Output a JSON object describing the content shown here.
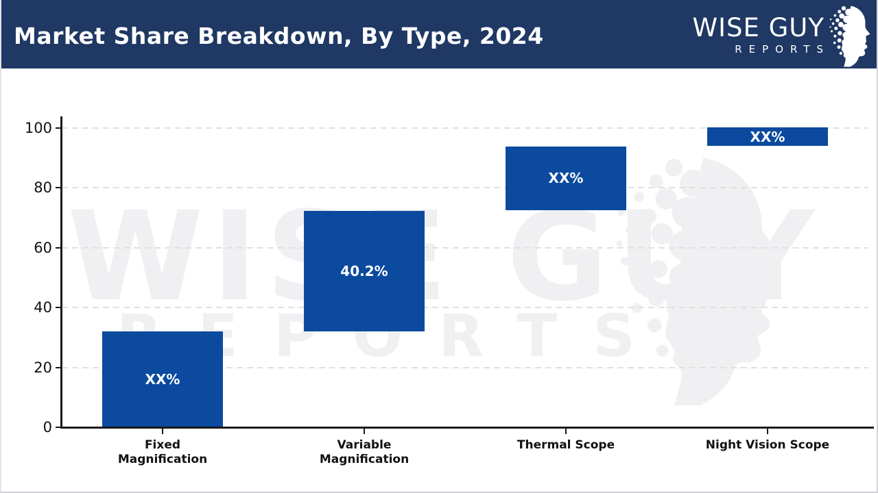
{
  "header": {
    "title": "Market Share Breakdown, By Type, 2024",
    "brand": {
      "name": "WISE GUY",
      "sub": "REPORTS"
    }
  },
  "watermark": {
    "name": "WISE GUY",
    "sub": "REPORTS"
  },
  "colors": {
    "header_bg": "#1f3864",
    "bar_fill": "#0b4a9f",
    "bar_label": "#ffffff",
    "grid_line": "#e0e0e0",
    "axis_line": "#1a1a1a",
    "tick_label": "#111111",
    "watermark_fill": "#f0f0f3"
  },
  "chart_data": {
    "type": "bar",
    "variant": "stacked_waterfall_percent",
    "title": "Market Share Breakdown, By Type, 2024",
    "xlabel": "",
    "ylabel": "",
    "ylim": [
      0,
      100
    ],
    "y_ticks": [
      0,
      20,
      40,
      60,
      80,
      100
    ],
    "grid": "horizontal-dashed",
    "legend": "none",
    "categories": [
      {
        "label": "Fixed Magnification",
        "label_lines": [
          "Fixed",
          "Magnification"
        ],
        "start": 0,
        "end": 32,
        "value_label": "XX%"
      },
      {
        "label": "Variable Magnification",
        "label_lines": [
          "Variable",
          "Magnification"
        ],
        "start": 32.1,
        "end": 72.3,
        "value_label": "40.2%",
        "value": 40.2
      },
      {
        "label": "Thermal Scope",
        "label_lines": [
          "Thermal Scope"
        ],
        "start": 72.5,
        "end": 93.9,
        "value_label": "XX%"
      },
      {
        "label": "Night Vision Scope",
        "label_lines": [
          "Night Vision Scope"
        ],
        "start": 94,
        "end": 100.2,
        "value_label": "XX%"
      }
    ]
  }
}
